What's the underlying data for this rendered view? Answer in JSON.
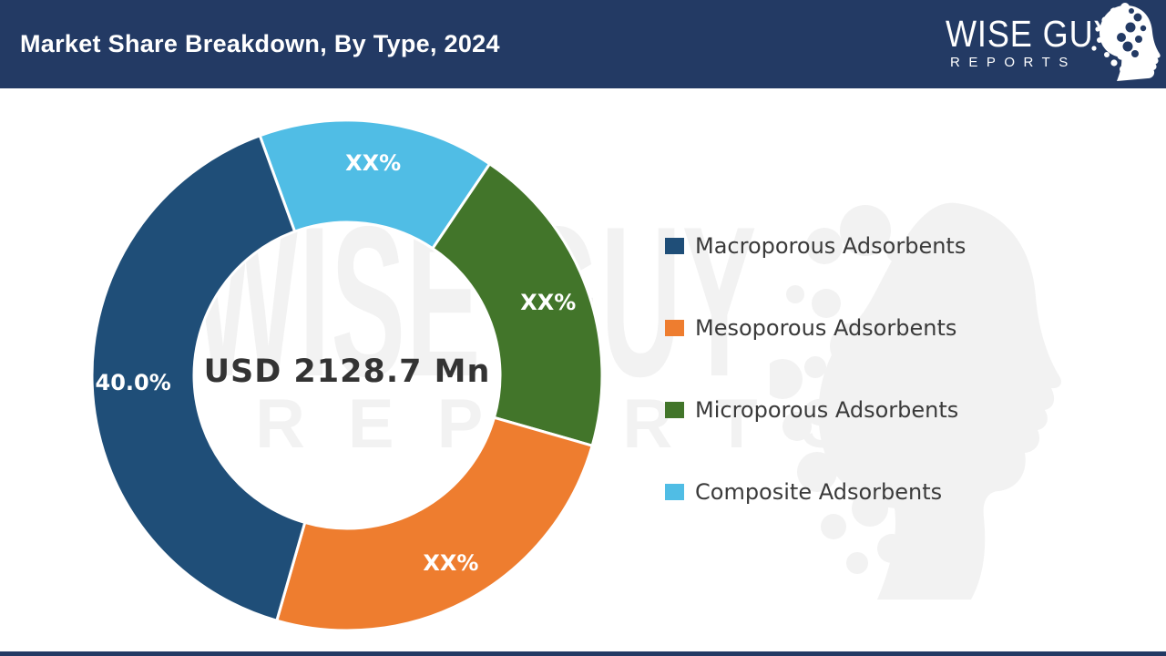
{
  "header": {
    "title": "Market Share Breakdown, By Type, 2024"
  },
  "logo": {
    "line1": "WISE GUY",
    "line2": "REPORTS"
  },
  "watermark": {
    "line1": "WISE GUY",
    "line2": "REPORTS"
  },
  "chart_data": {
    "type": "pie",
    "subtype": "donut",
    "title": "Market Share Breakdown, By Type, 2024",
    "center_label": "USD 2128.7 Mn",
    "start_angle_deg": 110,
    "direction": "clockwise",
    "legend_position": "right",
    "segments": [
      {
        "label": "Macroporous Adsorbents",
        "value_pct": 40.0,
        "display": "40.0%",
        "color": "#1F4E78"
      },
      {
        "label": "Mesoporous Adsorbents",
        "value_pct": 25.0,
        "display": "XX%",
        "color": "#EE7D2F"
      },
      {
        "label": "Microporous Adsorbents",
        "value_pct": 20.0,
        "display": "XX%",
        "color": "#42752A"
      },
      {
        "label": "Composite Adsorbents",
        "value_pct": 15.0,
        "display": "XX%",
        "color": "#50BDE5"
      }
    ]
  },
  "colors": {
    "header_bg": "#233A64",
    "legend_text": "#3a3a3a",
    "center_text": "#333333",
    "watermark": "#f2f2f2",
    "segment_stroke": "#ffffff"
  }
}
